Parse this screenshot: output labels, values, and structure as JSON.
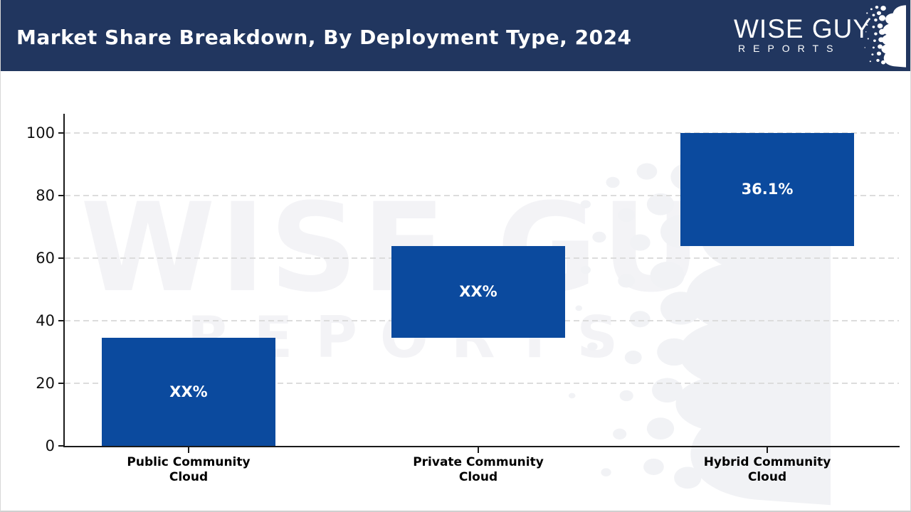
{
  "header": {
    "title": "Market Share Breakdown, By Deployment Type, 2024",
    "bg_color": "#21365f",
    "logo": {
      "line1": "WISE GUY",
      "line2": "REPORTS"
    }
  },
  "watermark": {
    "line1": "WISE GUY",
    "line2": "REPORTS"
  },
  "chart_data": {
    "type": "bar",
    "subtype": "stacked-waterfall-segments",
    "title": "Market Share Breakdown, By Deployment Type, 2024",
    "categories": [
      "Public Community Cloud",
      "Private Community Cloud",
      "Hybrid Community Cloud"
    ],
    "segments": [
      {
        "category": "Public Community Cloud",
        "start": 0,
        "end": 34.5,
        "label": "XX%"
      },
      {
        "category": "Private Community Cloud",
        "start": 34.5,
        "end": 63.9,
        "label": "XX%"
      },
      {
        "category": "Hybrid Community Cloud",
        "start": 63.9,
        "end": 100,
        "label": "36.1%"
      }
    ],
    "xlabel": "",
    "ylabel": "",
    "ylim": [
      0,
      100
    ],
    "yticks": [
      0,
      20,
      40,
      60,
      80,
      100
    ],
    "grid": "horizontal-dashed",
    "legend": "none",
    "bar_color": "#0b4a9e",
    "bar_label_color": "#ffffff",
    "gridline_color": "#dcdcdc",
    "axis_color": "#1a1a1a"
  }
}
